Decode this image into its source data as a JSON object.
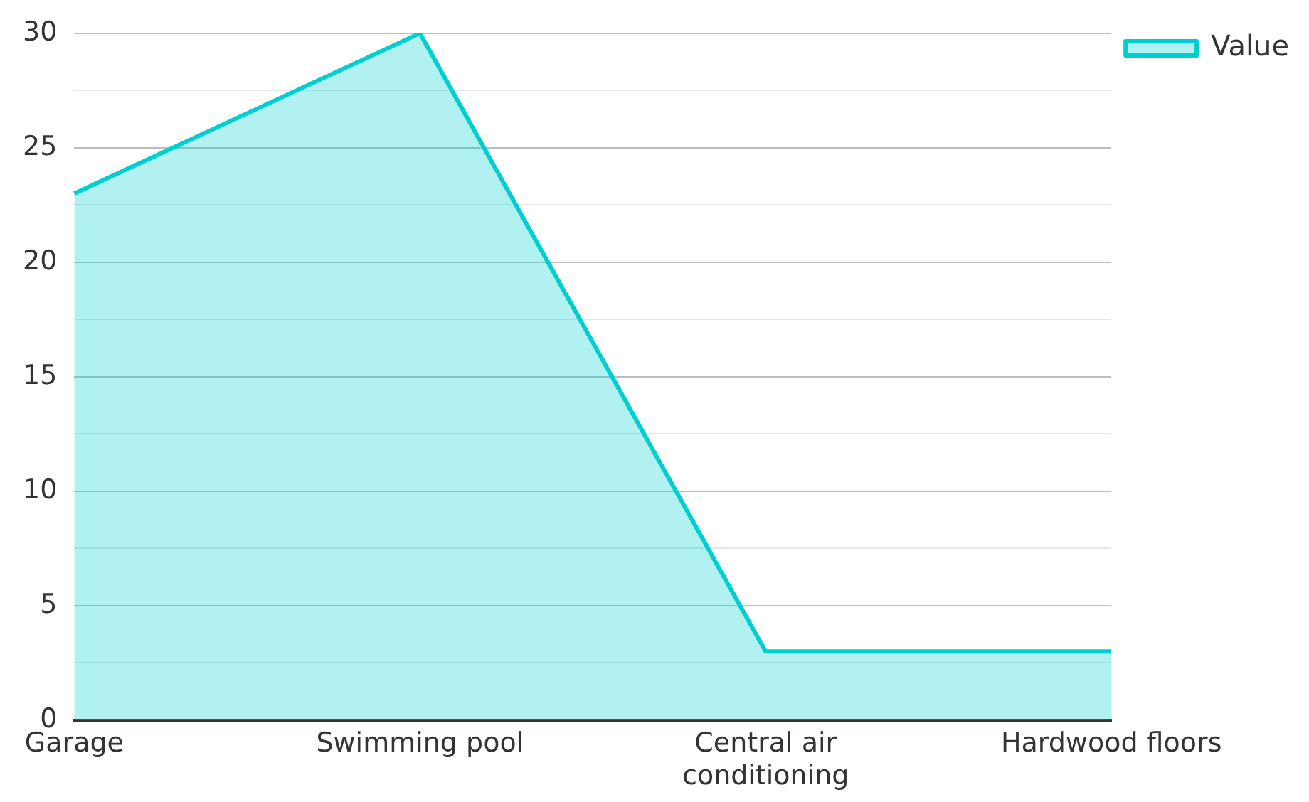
{
  "chart_data": {
    "type": "area",
    "categories": [
      "Garage",
      "Swimming pool",
      "Central air conditioning",
      "Hardwood floors"
    ],
    "series": [
      {
        "name": "Value",
        "color": "#00cfcf",
        "values": [
          23,
          30,
          3,
          3
        ]
      }
    ],
    "ylim": [
      0,
      30
    ],
    "yticks": [
      0,
      {
        "value": 2.5,
        "label": null
      },
      5,
      {
        "value": 7.5,
        "label": null
      },
      10,
      {
        "value": 12.5,
        "label": null
      },
      15,
      {
        "value": 17.5,
        "label": null
      },
      20,
      {
        "value": 22.5,
        "label": null
      },
      25,
      {
        "value": 27.5,
        "label": null
      },
      30
    ],
    "grid": "y",
    "legend": "top right"
  }
}
